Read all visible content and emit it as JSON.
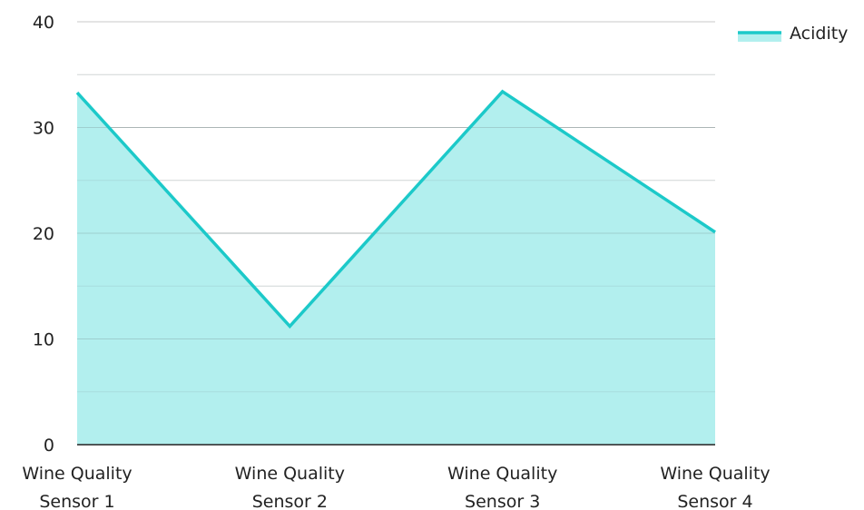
{
  "chart_data": {
    "type": "area",
    "categories": [
      [
        "Wine Quality",
        "Sensor 1"
      ],
      [
        "Wine Quality",
        "Sensor 2"
      ],
      [
        "Wine Quality",
        "Sensor 3"
      ],
      [
        "Wine Quality",
        "Sensor 4"
      ]
    ],
    "series": [
      {
        "name": "Acidity",
        "values": [
          33.3,
          11.2,
          33.4,
          20.1
        ]
      }
    ],
    "ylim": [
      0,
      40
    ],
    "yticks": [
      "0",
      "10",
      "20",
      "30",
      "40"
    ],
    "minor_grid_step": 5,
    "grid": true,
    "legend_position": "top-right",
    "colors": {
      "line": "#1cc9c9",
      "fill": "#b2efee",
      "grid": "#cccccc",
      "axis": "#222222"
    }
  }
}
